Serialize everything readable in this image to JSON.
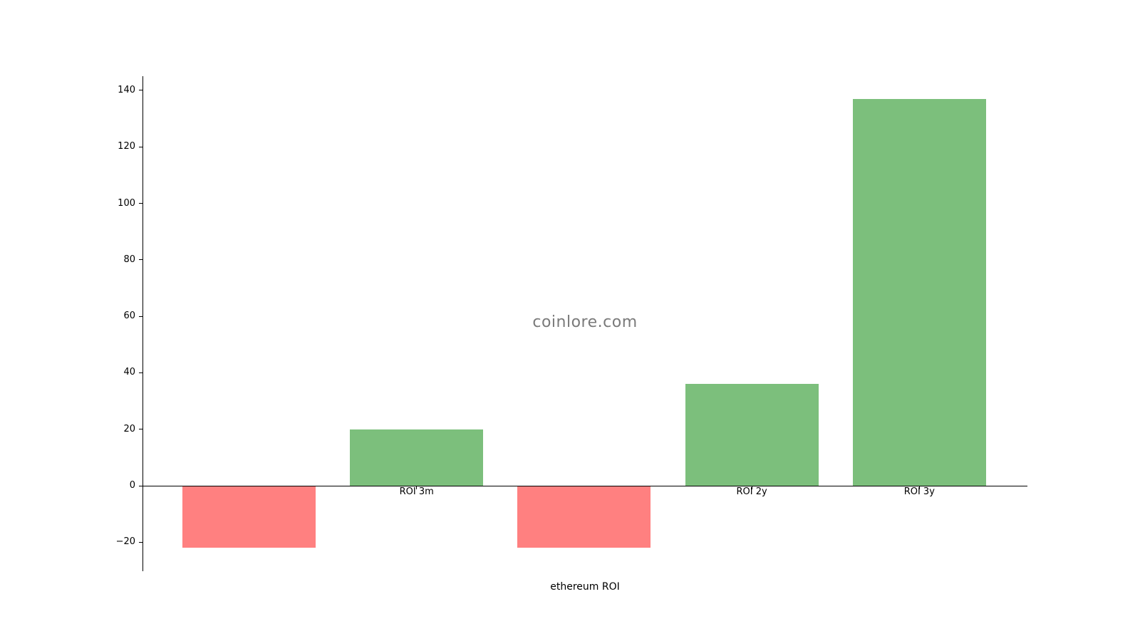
{
  "page": {
    "background": "#ffffff"
  },
  "watermark": {
    "text": "coinlore.com",
    "color": "#7a7a7a"
  },
  "chart_data": {
    "type": "bar",
    "title": "",
    "xlabel": "ethereum ROI",
    "ylabel": "",
    "categories": [
      "",
      "ROI 3m",
      "",
      "ROI 2y",
      "ROI 3y"
    ],
    "values": [
      -22,
      20,
      -22,
      36,
      137
    ],
    "positive_color": "#7cbf7c",
    "negative_color": "#ff8080",
    "axis_color": "#000000",
    "tick_label_color": "#000000",
    "y_ticks": [
      140,
      120,
      100,
      80,
      60,
      40,
      20,
      0,
      -20
    ],
    "ylim": [
      -30.3,
      145.1
    ],
    "grid": false,
    "legend": "none"
  }
}
